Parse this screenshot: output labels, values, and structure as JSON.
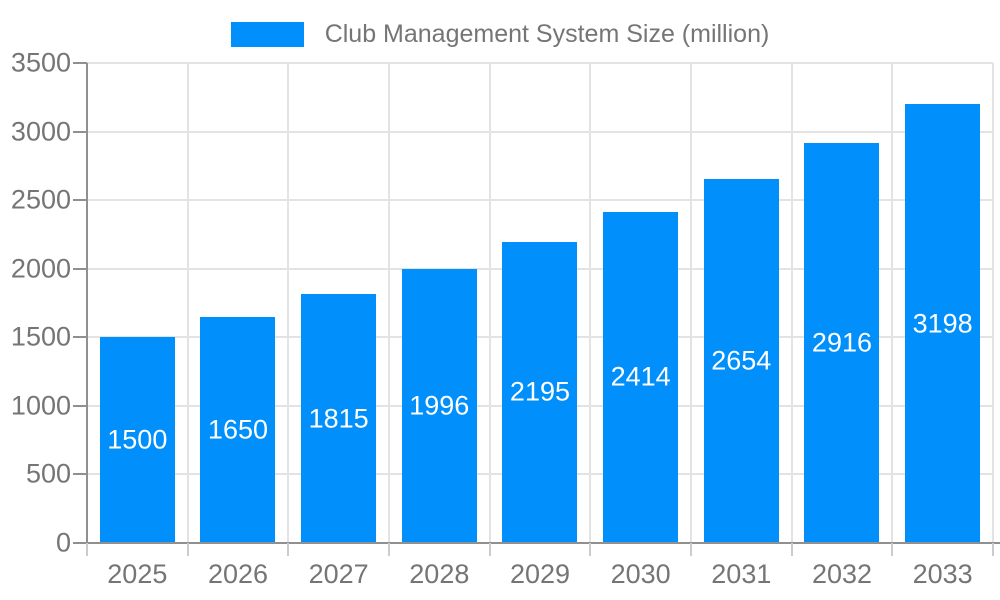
{
  "legend": {
    "label": "Club Management System Size (million)"
  },
  "colors": {
    "bar": "#008FFB",
    "axis_text": "#757575",
    "value_text": "#ffffff",
    "grid_line": "#e3e3e3",
    "axis_line": "#909090",
    "x_tick": "#cccccc",
    "y_tick": "#909090"
  },
  "chart_data": {
    "type": "bar",
    "title": "Club Management System Size (million)",
    "series_name": "Club Management System Size (million)",
    "categories": [
      "2025",
      "2026",
      "2027",
      "2028",
      "2029",
      "2030",
      "2031",
      "2032",
      "2033"
    ],
    "values": [
      1500,
      1650,
      1815,
      1996,
      2195,
      2414,
      2654,
      2916,
      3198
    ],
    "xlabel": "",
    "ylabel": "",
    "ylim": [
      0,
      3500
    ],
    "ytick_step": 500,
    "yticks": [
      0,
      500,
      1000,
      1500,
      2000,
      2500,
      3000,
      3500
    ],
    "grid": true,
    "legend_position": "top",
    "bar_label_position": "inside-middle"
  }
}
